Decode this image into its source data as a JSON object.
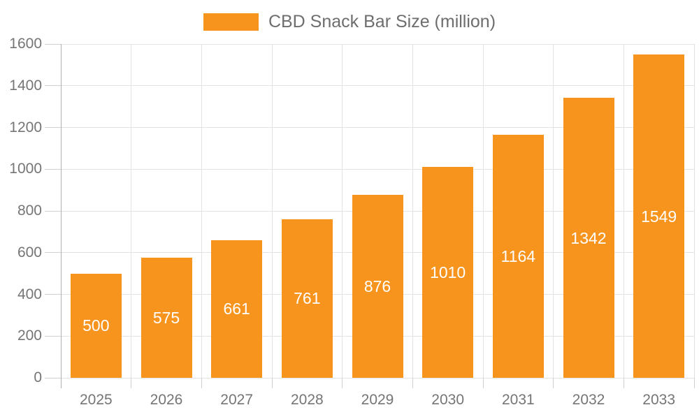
{
  "legend": {
    "label": "CBD Snack Bar Size (million)"
  },
  "colors": {
    "bar": "#F7941E",
    "grid": "#E3E3E3",
    "tick": "#CFCFCF",
    "axis_line": "#B0B0B0",
    "axis_text": "#757575",
    "legend_text": "#6E6E6E",
    "value_label": "#FFFFFF",
    "background": "#FFFFFF"
  },
  "chart_data": {
    "type": "bar",
    "categories": [
      "2025",
      "2026",
      "2027",
      "2028",
      "2029",
      "2030",
      "2031",
      "2032",
      "2033"
    ],
    "series": [
      {
        "name": "CBD Snack Bar Size (million)",
        "values": [
          500,
          575,
          661,
          761,
          876,
          1010,
          1164,
          1342,
          1549
        ]
      }
    ],
    "xlabel": "",
    "ylabel": "",
    "ylim": [
      0,
      1600
    ],
    "yticks": [
      0,
      200,
      400,
      600,
      800,
      1000,
      1200,
      1400,
      1600
    ],
    "grid": true,
    "legend_position": "top-center",
    "value_labels_position": "inside-center"
  }
}
